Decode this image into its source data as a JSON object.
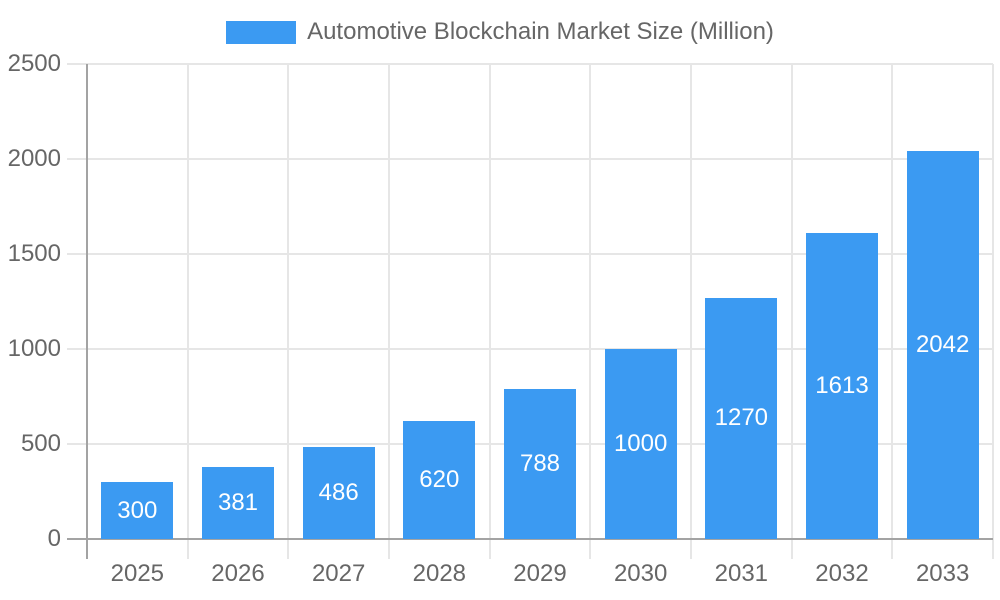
{
  "legend": {
    "label": "Automotive Blockchain Market Size (Million)"
  },
  "chart_data": {
    "type": "bar",
    "title": "Automotive Blockchain Market Size (Million)",
    "categories": [
      "2025",
      "2026",
      "2027",
      "2028",
      "2029",
      "2030",
      "2031",
      "2032",
      "2033"
    ],
    "values": [
      300,
      381,
      486,
      620,
      788,
      1000,
      1270,
      1613,
      2042
    ],
    "xlabel": "",
    "ylabel": "",
    "ylim": [
      0,
      2500
    ],
    "yticks": [
      0,
      500,
      1000,
      1500,
      2000,
      2500
    ],
    "grid": true,
    "legend_position": "top",
    "colors": {
      "bar": "#3b9af2",
      "value_label": "#ffffff",
      "tick_label": "#666666",
      "gridline": "#e6e6e6",
      "axis_line": "#a3a3a3"
    }
  }
}
